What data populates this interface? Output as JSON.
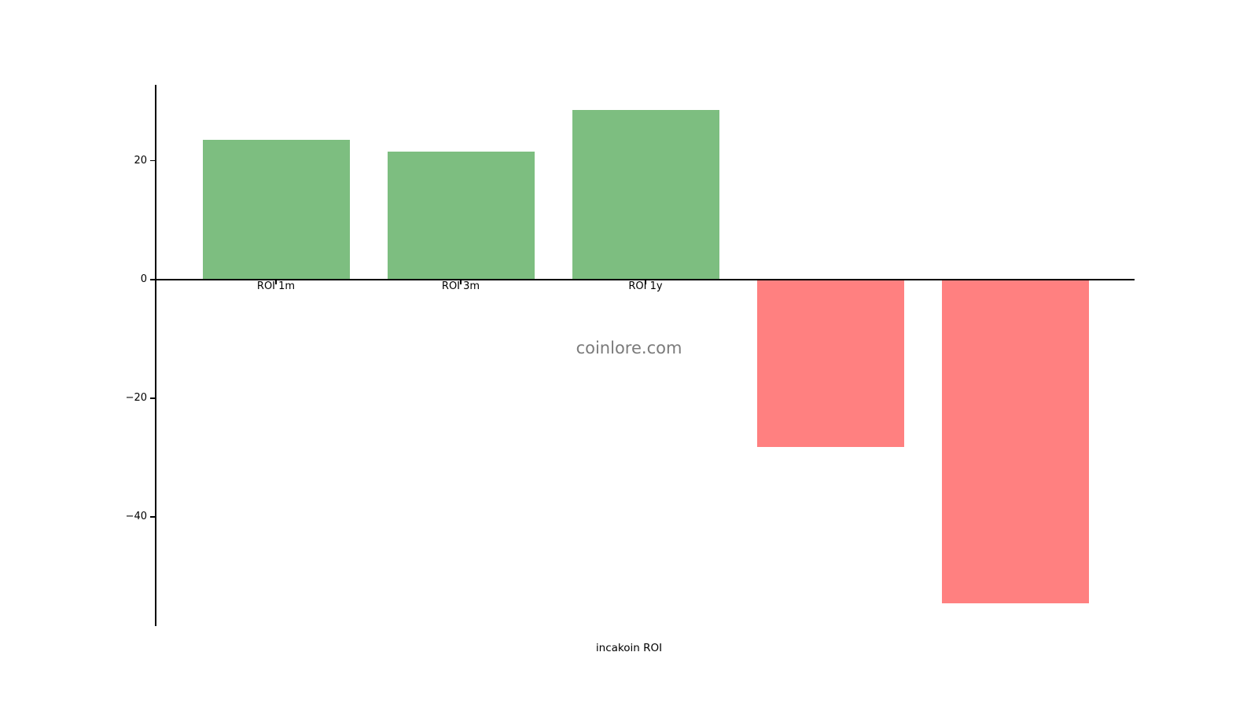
{
  "page": {
    "background": "#ffffff"
  },
  "watermark": {
    "text": "coinlore.com",
    "color": "#7b7b7b"
  },
  "chart_data": {
    "type": "bar",
    "title": "incakoin ROI",
    "xlabel": "",
    "ylabel": "",
    "categories": [
      "ROI 1m",
      "ROI 3m",
      "ROI 1y",
      "",
      ""
    ],
    "values": [
      23.6,
      21.6,
      28.6,
      -28.2,
      -54.6
    ],
    "bar_colors": {
      "positive": "#7dbe80",
      "negative": "#ff8080"
    },
    "yticks": [
      {
        "value": 20,
        "label": "20"
      },
      {
        "value": 0,
        "label": "0"
      },
      {
        "value": -20,
        "label": "−20"
      },
      {
        "value": -40,
        "label": "−40"
      }
    ],
    "ylim": [
      -58.4,
      32.8
    ],
    "grid": false,
    "legend": "none",
    "note": "category labels for the two negative bars are hidden behind the bars in the rendered image"
  }
}
